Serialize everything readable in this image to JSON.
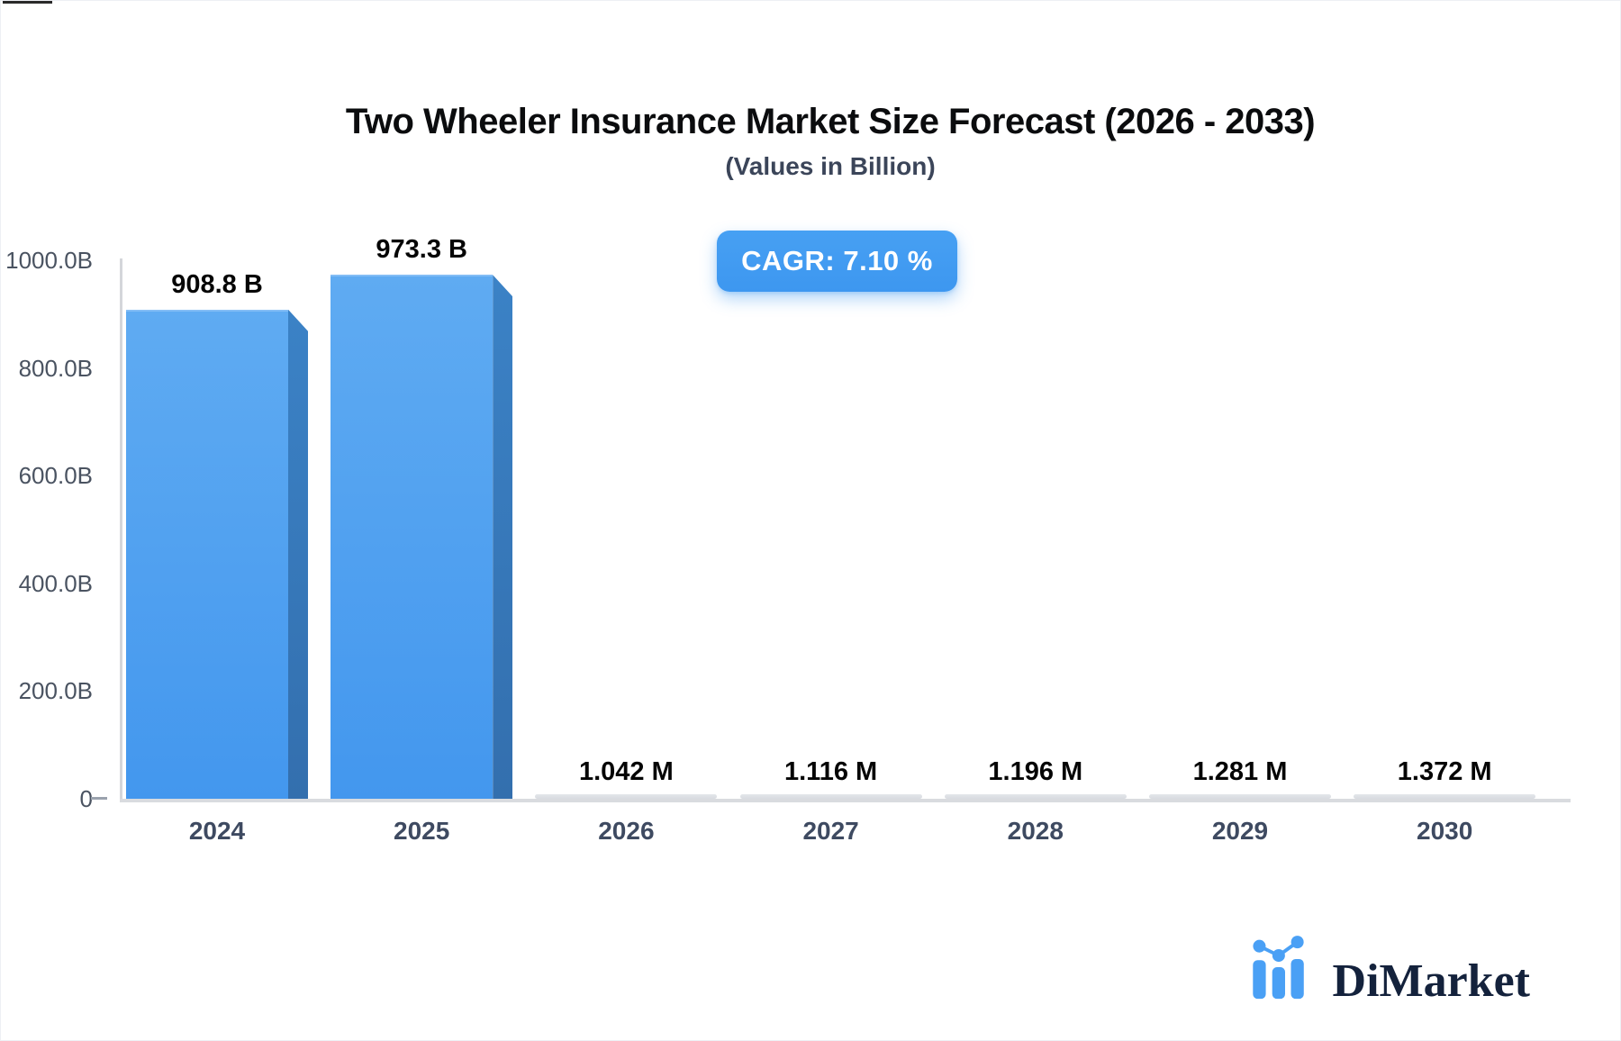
{
  "header": {
    "title": "Two Wheeler Insurance Market Size Forecast (2026 - 2033)",
    "subtitle": "(Values in Billion)"
  },
  "cagr_badge": {
    "label": "CAGR: 7.10 %"
  },
  "chart_data": {
    "type": "bar",
    "title": "Two Wheeler Insurance Market Size Forecast (2026 - 2033)",
    "subtitle": "(Values in Billion)",
    "cagr": "7.10 %",
    "categories": [
      "2024",
      "2025",
      "2026",
      "2027",
      "2028",
      "2029",
      "2030"
    ],
    "values": [
      908.8,
      973.3,
      1.042,
      1.116,
      1.196,
      1.281,
      1.372
    ],
    "units": [
      "B",
      "B",
      "M",
      "M",
      "M",
      "M",
      "M"
    ],
    "data_labels": [
      "908.8 B",
      "973.3 B",
      "1.042 M",
      "1.116 M",
      "1.196 M",
      "1.281 M",
      "1.372 M"
    ],
    "y_ticks": [
      {
        "label": "1000.0B",
        "value": 1000
      },
      {
        "label": "800.0B",
        "value": 800
      },
      {
        "label": "600.0B",
        "value": 600
      },
      {
        "label": "400.0B",
        "value": 400
      },
      {
        "label": "200.0B",
        "value": 200
      },
      {
        "label": "0",
        "value": 0
      }
    ],
    "ylim": [
      0,
      1000
    ],
    "grid": false,
    "legend": false,
    "colors": {
      "bar_face": "#54a4ef",
      "bar_side": "#3579ba",
      "small_bar": "#dfe2e6",
      "axis_line": "#d9dbdf",
      "badge_blue": "#3d97f0"
    }
  },
  "branding": {
    "logo_text": "DiMarket",
    "logo_icon": "bar-chart-trend-icon",
    "logo_color": "#4aa0f5"
  }
}
